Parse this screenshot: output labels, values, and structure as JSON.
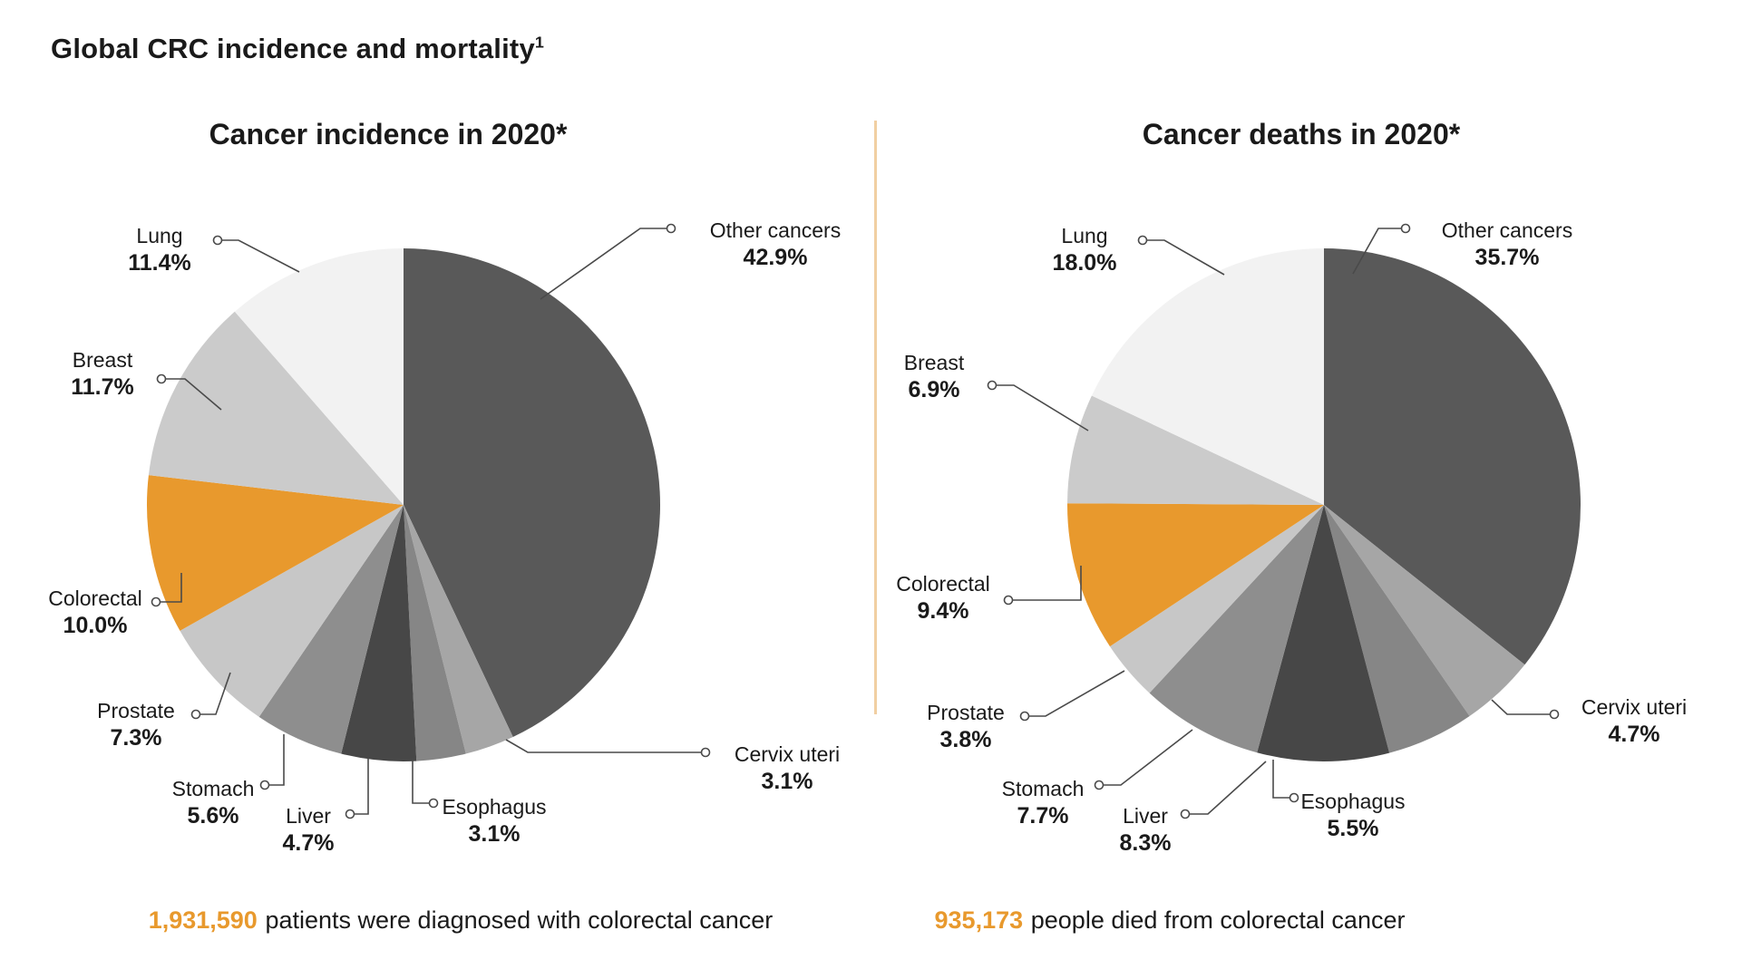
{
  "header": {
    "title": "Global CRC incidence and mortality",
    "footnote_marker": "1"
  },
  "styles": {
    "accent_orange": "#E8992D",
    "divider_color": "#F1CFA2",
    "text_color": "#1A1A1A",
    "leader_line_color": "#4A4A4A",
    "other_slice_gray": "#595959"
  },
  "chart_data": [
    {
      "type": "pie",
      "title": "Cancer incidence in 2020*",
      "unit": "%",
      "legend_position": "outside-labels",
      "slices": [
        {
          "label": "Other cancers",
          "value": 42.9,
          "value_label": "42.9%",
          "color": "#595959"
        },
        {
          "label": "Cervix uteri",
          "value": 3.1,
          "value_label": "3.1%",
          "color": "#A6A6A6"
        },
        {
          "label": "Esophagus",
          "value": 3.1,
          "value_label": "3.1%",
          "color": "#868686"
        },
        {
          "label": "Liver",
          "value": 4.7,
          "value_label": "4.7%",
          "color": "#474747"
        },
        {
          "label": "Stomach",
          "value": 5.6,
          "value_label": "5.6%",
          "color": "#8E8E8E"
        },
        {
          "label": "Prostate",
          "value": 7.3,
          "value_label": "7.3%",
          "color": "#C7C7C7"
        },
        {
          "label": "Colorectal",
          "value": 10.0,
          "value_label": "10.0%",
          "color": "#E8992D"
        },
        {
          "label": "Breast",
          "value": 11.7,
          "value_label": "11.7%",
          "color": "#CBCBCB"
        },
        {
          "label": "Lung",
          "value": 11.4,
          "value_label": "11.4%",
          "color": "#F2F2F2"
        }
      ],
      "caption": {
        "highlight": "1,931,590",
        "text": "patients were diagnosed with colorectal cancer"
      }
    },
    {
      "type": "pie",
      "title": "Cancer deaths in 2020*",
      "unit": "%",
      "legend_position": "outside-labels",
      "slices": [
        {
          "label": "Other cancers",
          "value": 35.7,
          "value_label": "35.7%",
          "color": "#595959"
        },
        {
          "label": "Cervix uteri",
          "value": 4.7,
          "value_label": "4.7%",
          "color": "#A6A6A6"
        },
        {
          "label": "Esophagus",
          "value": 5.5,
          "value_label": "5.5%",
          "color": "#868686"
        },
        {
          "label": "Liver",
          "value": 8.3,
          "value_label": "8.3%",
          "color": "#474747"
        },
        {
          "label": "Stomach",
          "value": 7.7,
          "value_label": "7.7%",
          "color": "#8E8E8E"
        },
        {
          "label": "Prostate",
          "value": 3.8,
          "value_label": "3.8%",
          "color": "#C7C7C7"
        },
        {
          "label": "Colorectal",
          "value": 9.4,
          "value_label": "9.4%",
          "color": "#E8992D"
        },
        {
          "label": "Breast",
          "value": 6.9,
          "value_label": "6.9%",
          "color": "#CBCBCB"
        },
        {
          "label": "Lung",
          "value": 18.0,
          "value_label": "18.0%",
          "color": "#F2F2F2"
        }
      ],
      "caption": {
        "highlight": "935,173",
        "text": "people died from colorectal cancer"
      }
    }
  ]
}
